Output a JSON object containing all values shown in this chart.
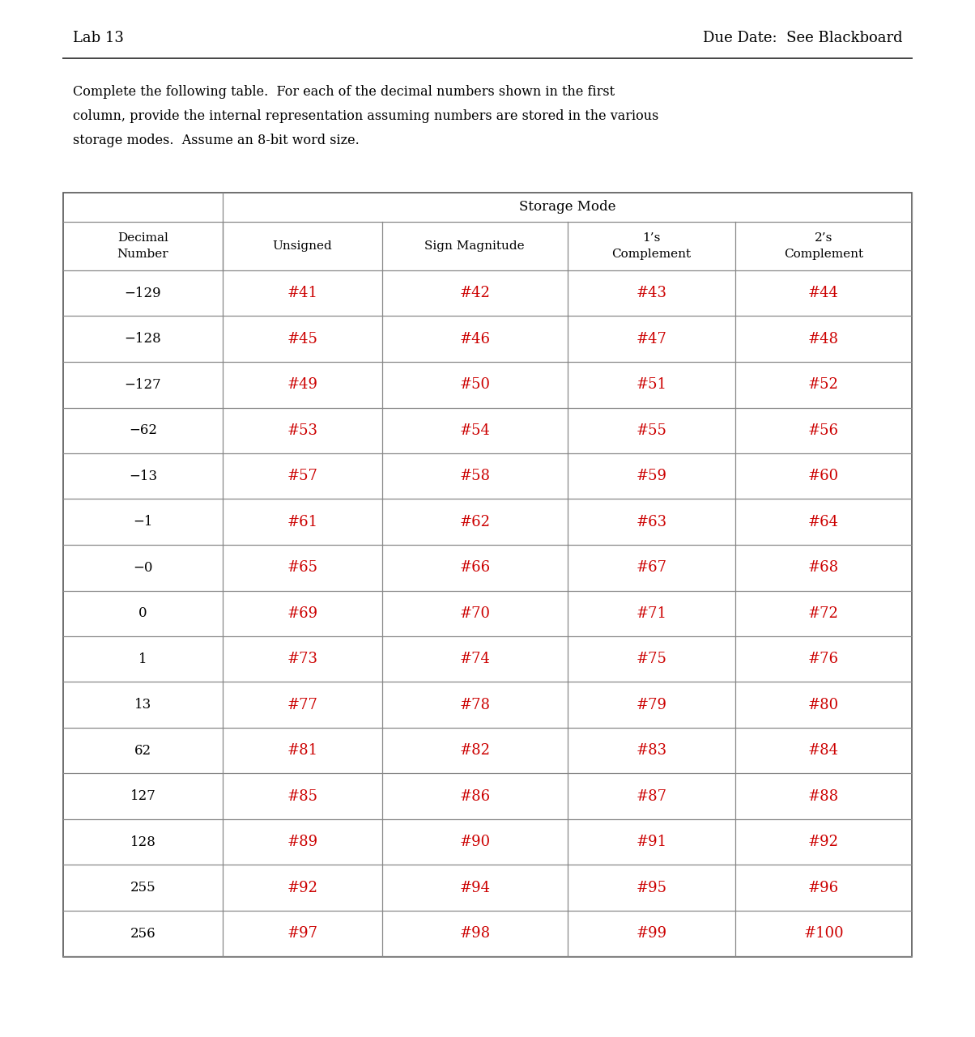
{
  "title_left": "Lab 13",
  "title_right": "Due Date:  See Blackboard",
  "instruction_lines": [
    "Complete the following table.  For each of the decimal numbers shown in the first",
    "column, provide the internal representation assuming numbers are stored in the various",
    "storage modes.  Assume an 8-bit word size."
  ],
  "storage_mode_label": "Storage Mode",
  "col_headers": [
    "Decimal\nNumber",
    "Unsigned",
    "Sign Magnitude",
    "1’s\nComplement",
    "2’s\nComplement"
  ],
  "rows": [
    [
      "−129",
      "#41",
      "#42",
      "#43",
      "#44"
    ],
    [
      "−128",
      "#45",
      "#46",
      "#47",
      "#48"
    ],
    [
      "−127",
      "#49",
      "#50",
      "#51",
      "#52"
    ],
    [
      "−62",
      "#53",
      "#54",
      "#55",
      "#56"
    ],
    [
      "−13",
      "#57",
      "#58",
      "#59",
      "#60"
    ],
    [
      "−1",
      "#61",
      "#62",
      "#63",
      "#64"
    ],
    [
      "−0",
      "#65",
      "#66",
      "#67",
      "#68"
    ],
    [
      "0",
      "#69",
      "#70",
      "#71",
      "#72"
    ],
    [
      "1",
      "#73",
      "#74",
      "#75",
      "#76"
    ],
    [
      "13",
      "#77",
      "#78",
      "#79",
      "#80"
    ],
    [
      "62",
      "#81",
      "#82",
      "#83",
      "#84"
    ],
    [
      "127",
      "#85",
      "#86",
      "#87",
      "#88"
    ],
    [
      "128",
      "#89",
      "#90",
      "#91",
      "#92"
    ],
    [
      "255",
      "#92",
      "#94",
      "#95",
      "#96"
    ],
    [
      "256",
      "#97",
      "#98",
      "#99",
      "#100"
    ]
  ],
  "decimal_color": "#000000",
  "answer_color": "#cc0000",
  "header_color": "#000000",
  "bg_color": "#ffffff",
  "table_line_color": "#888888",
  "fig_width": 12.04,
  "fig_height": 12.81
}
